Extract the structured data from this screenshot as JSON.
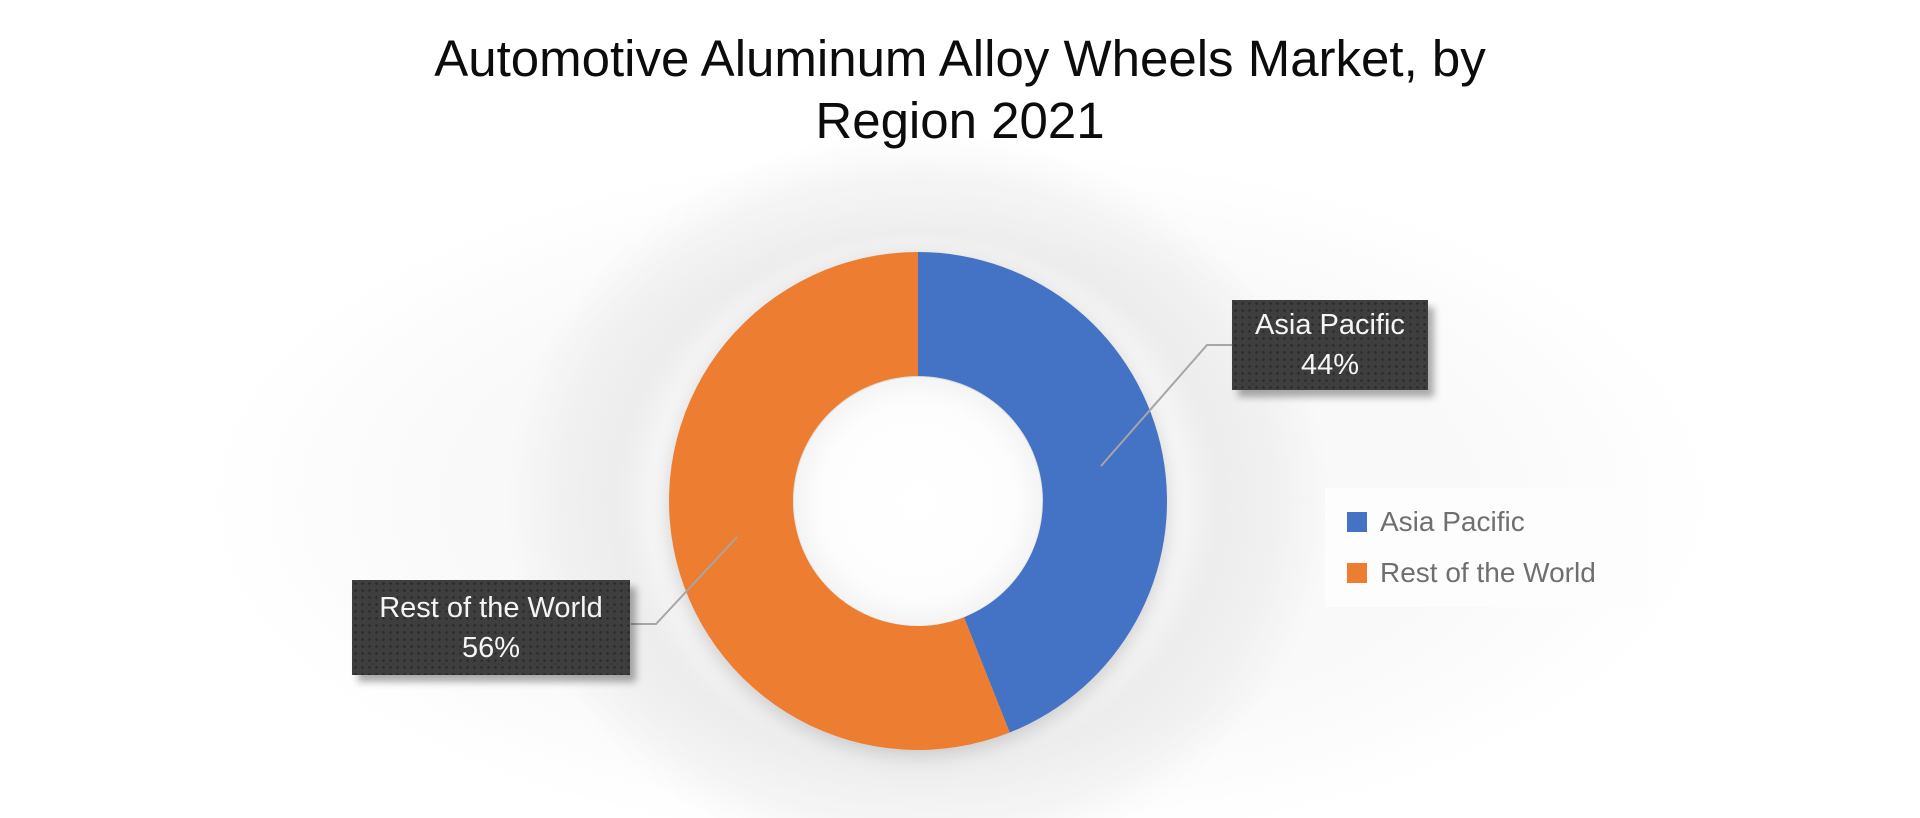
{
  "title": {
    "line1": "Automotive Aluminum Alloy Wheels Market, by",
    "line2": "Region 2021"
  },
  "chart_data": {
    "type": "pie",
    "subtype": "donut",
    "title": "Automotive Aluminum Alloy Wheels Market, by Region 2021",
    "categories": [
      "Asia Pacific",
      "Rest of the World"
    ],
    "values": [
      44,
      56
    ],
    "unit": "%",
    "colors": [
      "#4472C4",
      "#ED7D31"
    ],
    "start_angle_deg": 0,
    "direction": "clockwise",
    "inner_radius_ratio": 0.5,
    "legend_position": "right",
    "data_labels": [
      "Asia Pacific 44%",
      "Rest of the World 56%"
    ]
  },
  "callouts": [
    {
      "label": "Asia Pacific",
      "value": "44%"
    },
    {
      "label": "Rest of the World",
      "value": "56%"
    }
  ],
  "legend": {
    "items": [
      {
        "label": "Asia Pacific",
        "color": "#4472C4"
      },
      {
        "label": "Rest of the World",
        "color": "#ED7D31"
      }
    ]
  },
  "styles": {
    "callout_bg": "#3E3E3E",
    "callout_text": "#F5F5F5",
    "leader_line": "#A6A6A6",
    "legend_text": "#6F6F6F",
    "title_color": "#0C0C0C"
  }
}
